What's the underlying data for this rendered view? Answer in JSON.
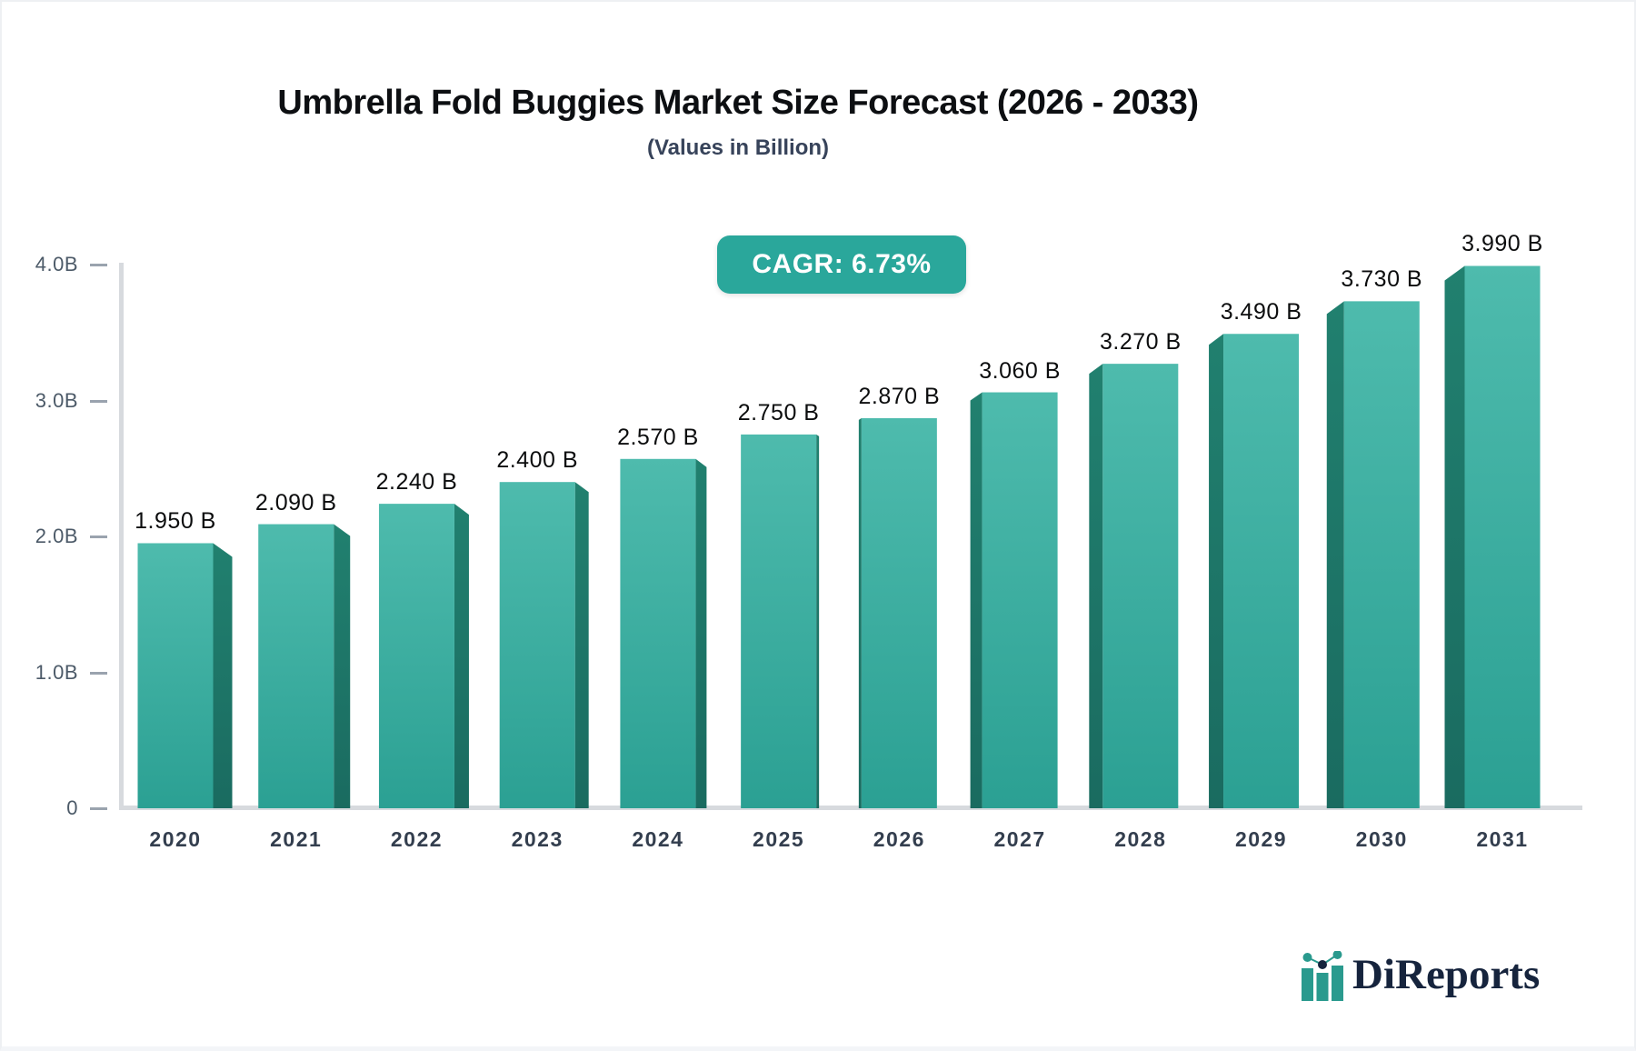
{
  "header": {
    "title": "Umbrella Fold Buggies Market Size Forecast (2026 - 2033)",
    "subtitle": "(Values in Billion)"
  },
  "badge": {
    "label": "CAGR: 6.73%",
    "bg_color": "#2aa79b",
    "text_color": "#ffffff"
  },
  "chart_data": {
    "type": "bar",
    "title": "Umbrella Fold Buggies Market Size Forecast (2026 - 2033)",
    "subtitle": "(Values in Billion)",
    "unit": "Billion (B)",
    "categories": [
      "2020",
      "2021",
      "2022",
      "2023",
      "2024",
      "2025",
      "2026",
      "2027",
      "2028",
      "2029",
      "2030",
      "2031"
    ],
    "values": [
      1.95,
      2.09,
      2.24,
      2.4,
      2.57,
      2.75,
      2.87,
      3.06,
      3.27,
      3.49,
      3.73,
      3.99
    ],
    "labels": [
      "1.950 B",
      "2.090 B",
      "2.240 B",
      "2.400 B",
      "2.570 B",
      "2.750 B",
      "2.870 B",
      "3.060 B",
      "3.270 B",
      "3.490 B",
      "3.730 B",
      "3.990 B"
    ],
    "ylim": [
      0,
      4
    ],
    "y_ticks": [
      {
        "label": "0",
        "value": 0
      },
      {
        "label": "1.0B",
        "value": 1
      },
      {
        "label": "2.0B",
        "value": 2
      },
      {
        "label": "3.0B",
        "value": 3
      },
      {
        "label": "4.0B",
        "value": 4
      }
    ],
    "grid": false,
    "legend": "none",
    "bar_style": "3d-extruded",
    "colors": {
      "front_top": "#4ebbad",
      "front_bottom": "#2ba093",
      "side_top": "#21806f",
      "side_bottom": "#1a6b60",
      "axis": "#d7dade",
      "tick": "#9aa3ae"
    }
  },
  "brand": {
    "name": "DiReports",
    "icon": "mini-bar-chart-icon",
    "text_color": "#16243d",
    "accent_color": "#2a9a8e"
  }
}
